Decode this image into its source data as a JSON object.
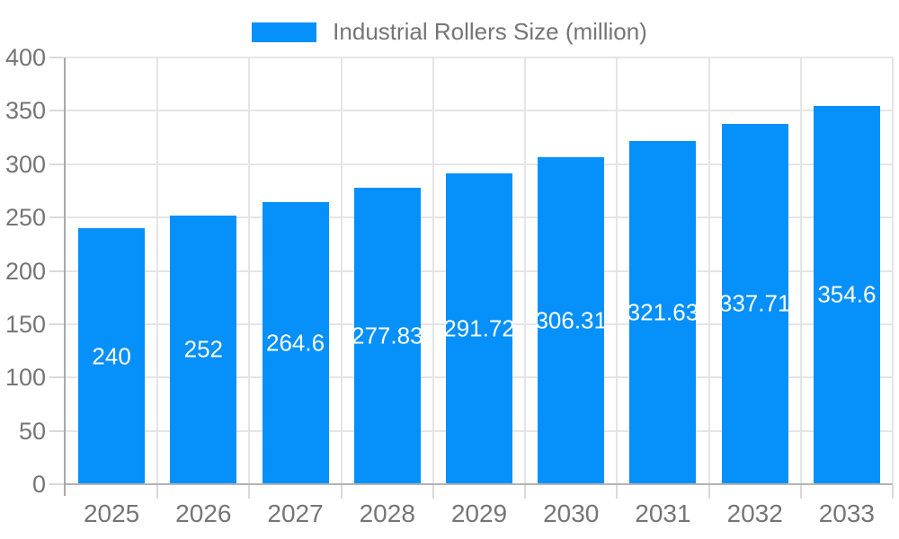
{
  "legend": {
    "label": "Industrial Rollers Size (million)"
  },
  "chart_data": {
    "type": "bar",
    "title": "Industrial Rollers Size (million)",
    "categories": [
      "2025",
      "2026",
      "2027",
      "2028",
      "2029",
      "2030",
      "2031",
      "2032",
      "2033"
    ],
    "series": [
      {
        "name": "Industrial Rollers Size (million)",
        "values": [
          240,
          252,
          264.6,
          277.83,
          291.72,
          306.31,
          321.63,
          337.71,
          354.6
        ]
      }
    ],
    "value_labels": [
      "240",
      "252",
      "264.6",
      "277.83",
      "291.72",
      "306.31",
      "321.63",
      "337.71",
      "354.6"
    ],
    "xlabel": "",
    "ylabel": "",
    "ylim": [
      0,
      400
    ],
    "y_ticks": [
      0,
      50,
      100,
      150,
      200,
      250,
      300,
      350,
      400
    ],
    "grid": true,
    "legend_position": "top-center",
    "colors": {
      "bar": "#0590fa",
      "value_label": "#ffffff",
      "axis_text": "#757575",
      "legend_text": "#757575",
      "gridline": "#e5e5e5",
      "axis_line": "#a9a9a9",
      "baseline": "#b3b3b3",
      "tick": "#d9d9d9",
      "background": "#ffffff"
    }
  }
}
